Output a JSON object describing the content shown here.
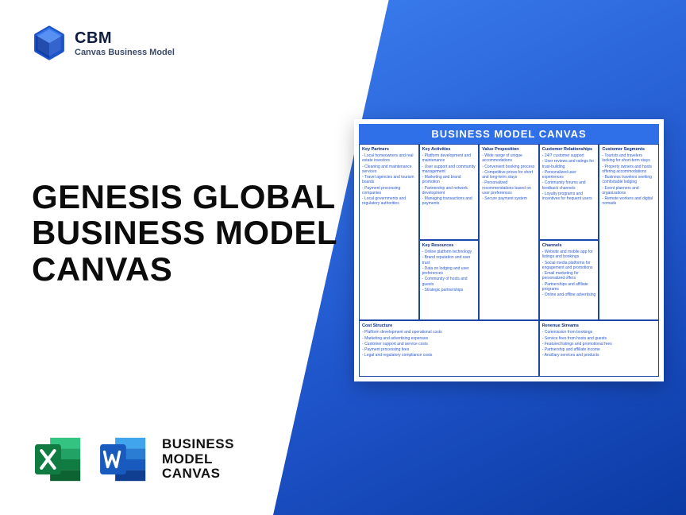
{
  "colors": {
    "brand_blue": "#1e53c9",
    "brand_blue_light": "#3b7ef0",
    "brand_blue_dark": "#0b3aa3",
    "canvas_header": "#2f6fe8",
    "canvas_border": "#1c45a8",
    "text_dark": "#0c0c0c",
    "excel_green_dark": "#107c41",
    "excel_green_mid": "#21a366",
    "excel_green_light": "#33c481",
    "word_blue_dark": "#103f91",
    "word_blue_mid": "#2b7cd3",
    "word_blue_light": "#41a5ee"
  },
  "logo": {
    "abbr": "CBM",
    "sub": "Canvas Business Model"
  },
  "hero": {
    "line1": "GENESIS GLOBAL",
    "line2": "BUSINESS MODEL",
    "line3": "CANVAS"
  },
  "file_caption": {
    "l1": "BUSINESS",
    "l2": "MODEL",
    "l3": "CANVAS"
  },
  "canvas": {
    "title": "BUSINESS MODEL CANVAS",
    "blocks": {
      "key_partners": {
        "title": "Key Partners",
        "items": [
          "Local homeowners and real estate investors",
          "Cleaning and maintenance services",
          "Travel agencies and tourism boards",
          "Payment processing companies",
          "Local governments and regulatory authorities"
        ]
      },
      "key_activities": {
        "title": "Key Activities",
        "items": [
          "Platform development and maintenance",
          "User support and community management",
          "Marketing and brand promotion",
          "Partnership and network development",
          "Managing transactions and payments"
        ]
      },
      "key_resources": {
        "title": "Key Resources",
        "items": [
          "Online platform technology",
          "Brand reputation and user trust",
          "Data on lodging and user preferences",
          "Community of hosts and guests",
          "Strategic partnerships"
        ]
      },
      "value_proposition": {
        "title": "Value Proposition",
        "items": [
          "Wide range of unique accommodations",
          "Convenient booking process",
          "Competitive prices for short and long-term stays",
          "Personalized recommendations based on user preferences",
          "Secure payment system"
        ]
      },
      "customer_relationships": {
        "title": "Customer Relationships",
        "items": [
          "24/7 customer support",
          "User reviews and ratings for trust-building",
          "Personalized user experiences",
          "Community forums and feedback channels",
          "Loyalty programs and incentives for frequent users"
        ]
      },
      "channels": {
        "title": "Channels",
        "items": [
          "Website and mobile app for listings and bookings",
          "Social media platforms for engagement and promotions",
          "Email marketing for personalized offers",
          "Partnerships and affiliate programs",
          "Online and offline advertising"
        ]
      },
      "customer_segments": {
        "title": "Customer Segments",
        "items": [
          "Tourists and travelers looking for short-term stays",
          "Property owners and hosts offering accommodations",
          "Business travelers seeking comfortable lodging",
          "Event planners and organizations",
          "Remote workers and digital nomads"
        ]
      },
      "cost_structure": {
        "title": "Cost Structure",
        "items": [
          "Platform development and operational costs",
          "Marketing and advertising expenses",
          "Customer support and service costs",
          "Payment processing fees",
          "Legal and regulatory compliance costs"
        ]
      },
      "revenue_streams": {
        "title": "Revenue Streams",
        "items": [
          "Commission from bookings",
          "Service fees from hosts and guests",
          "Featured listings and promotional fees",
          "Partnership and affiliate income",
          "Ancillary services and products"
        ]
      }
    }
  }
}
